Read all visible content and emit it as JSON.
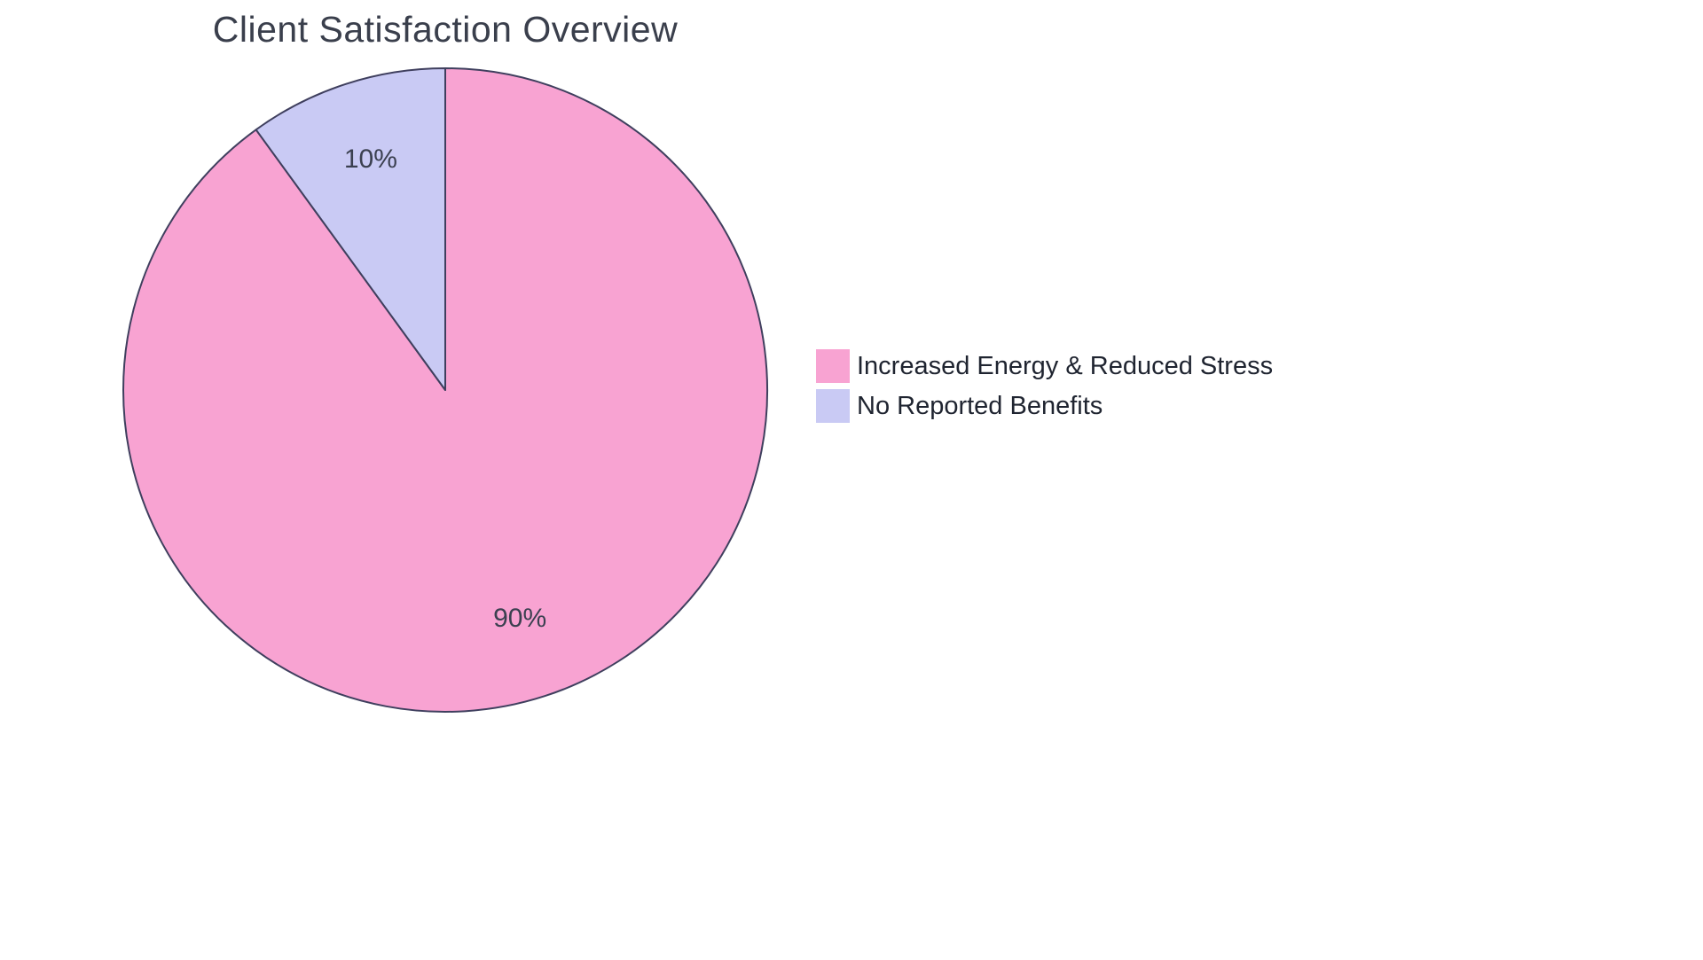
{
  "chart_data": {
    "type": "pie",
    "title": "Client Satisfaction Overview",
    "labels": [
      "Increased Energy & Reduced Stress",
      "No Reported Benefits"
    ],
    "values": [
      90,
      10
    ],
    "percent_labels": [
      "90%",
      "10%"
    ],
    "colors": [
      "#F8A3D2",
      "#C9CAF4"
    ],
    "stroke_color": "#3f3f5e",
    "start_angle_deg": 0,
    "direction": "clockwise",
    "legend_position": "right",
    "background": "#ffffff"
  }
}
